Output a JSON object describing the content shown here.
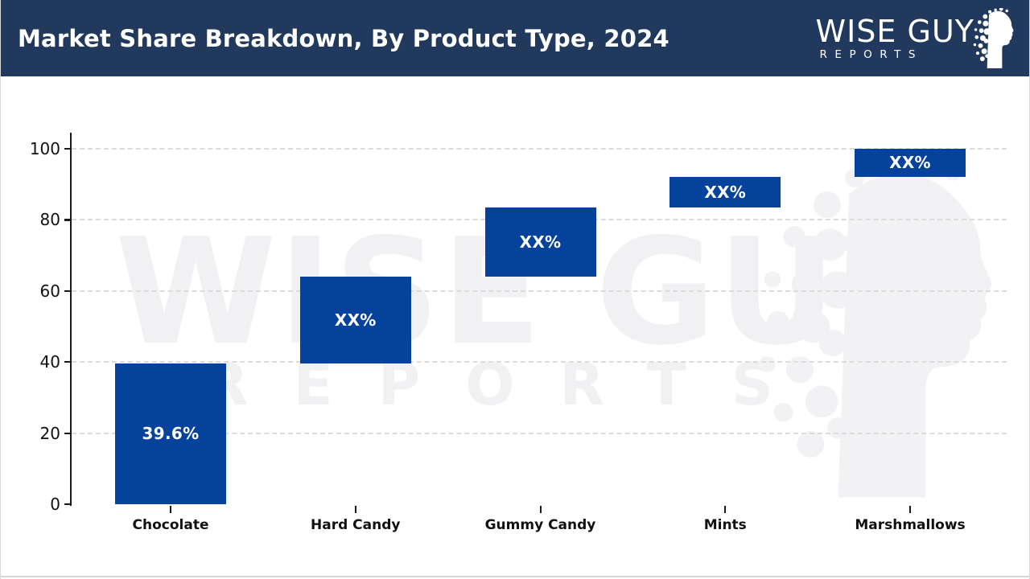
{
  "header": {
    "title": "Market Share Breakdown, By Product Type, 2024",
    "logo": {
      "line1": "WISE GUY",
      "line2": "REPORTS"
    }
  },
  "watermark": {
    "line1": "WISE GUY",
    "line2": "REPORTS"
  },
  "colors": {
    "header_bg": "#21395c",
    "bar": "#05429b",
    "bar_label": "#ffffff",
    "axis": "#1a1a1a",
    "grid": "#dcdcdc",
    "watermark": "#f1f1f4"
  },
  "chart_data": {
    "type": "bar",
    "subtype": "waterfall-stacked-percent",
    "title": "Market Share Breakdown, By Product Type, 2024",
    "xlabel": "",
    "ylabel": "",
    "ylim": [
      0,
      104
    ],
    "yticks": [
      0,
      20,
      40,
      60,
      80,
      100
    ],
    "grid": "horizontal-dashed",
    "legend": "none",
    "categories": [
      "Chocolate",
      "Hard Candy",
      "Gummy Candy",
      "Mints",
      "Marshmallows"
    ],
    "segments": [
      {
        "category": "Chocolate",
        "value": 39.6,
        "start": 0,
        "end": 39.6,
        "label": "39.6%"
      },
      {
        "category": "Hard Candy",
        "value": 24.5,
        "start": 39.6,
        "end": 64.1,
        "label": "XX%"
      },
      {
        "category": "Gummy Candy",
        "value": 19.4,
        "start": 64.1,
        "end": 83.5,
        "label": "XX%"
      },
      {
        "category": "Mints",
        "value": 8.6,
        "start": 83.5,
        "end": 92.1,
        "label": "XX%"
      },
      {
        "category": "Marshmallows",
        "value": 7.9,
        "start": 92.1,
        "end": 100,
        "label": "XX%"
      }
    ]
  }
}
